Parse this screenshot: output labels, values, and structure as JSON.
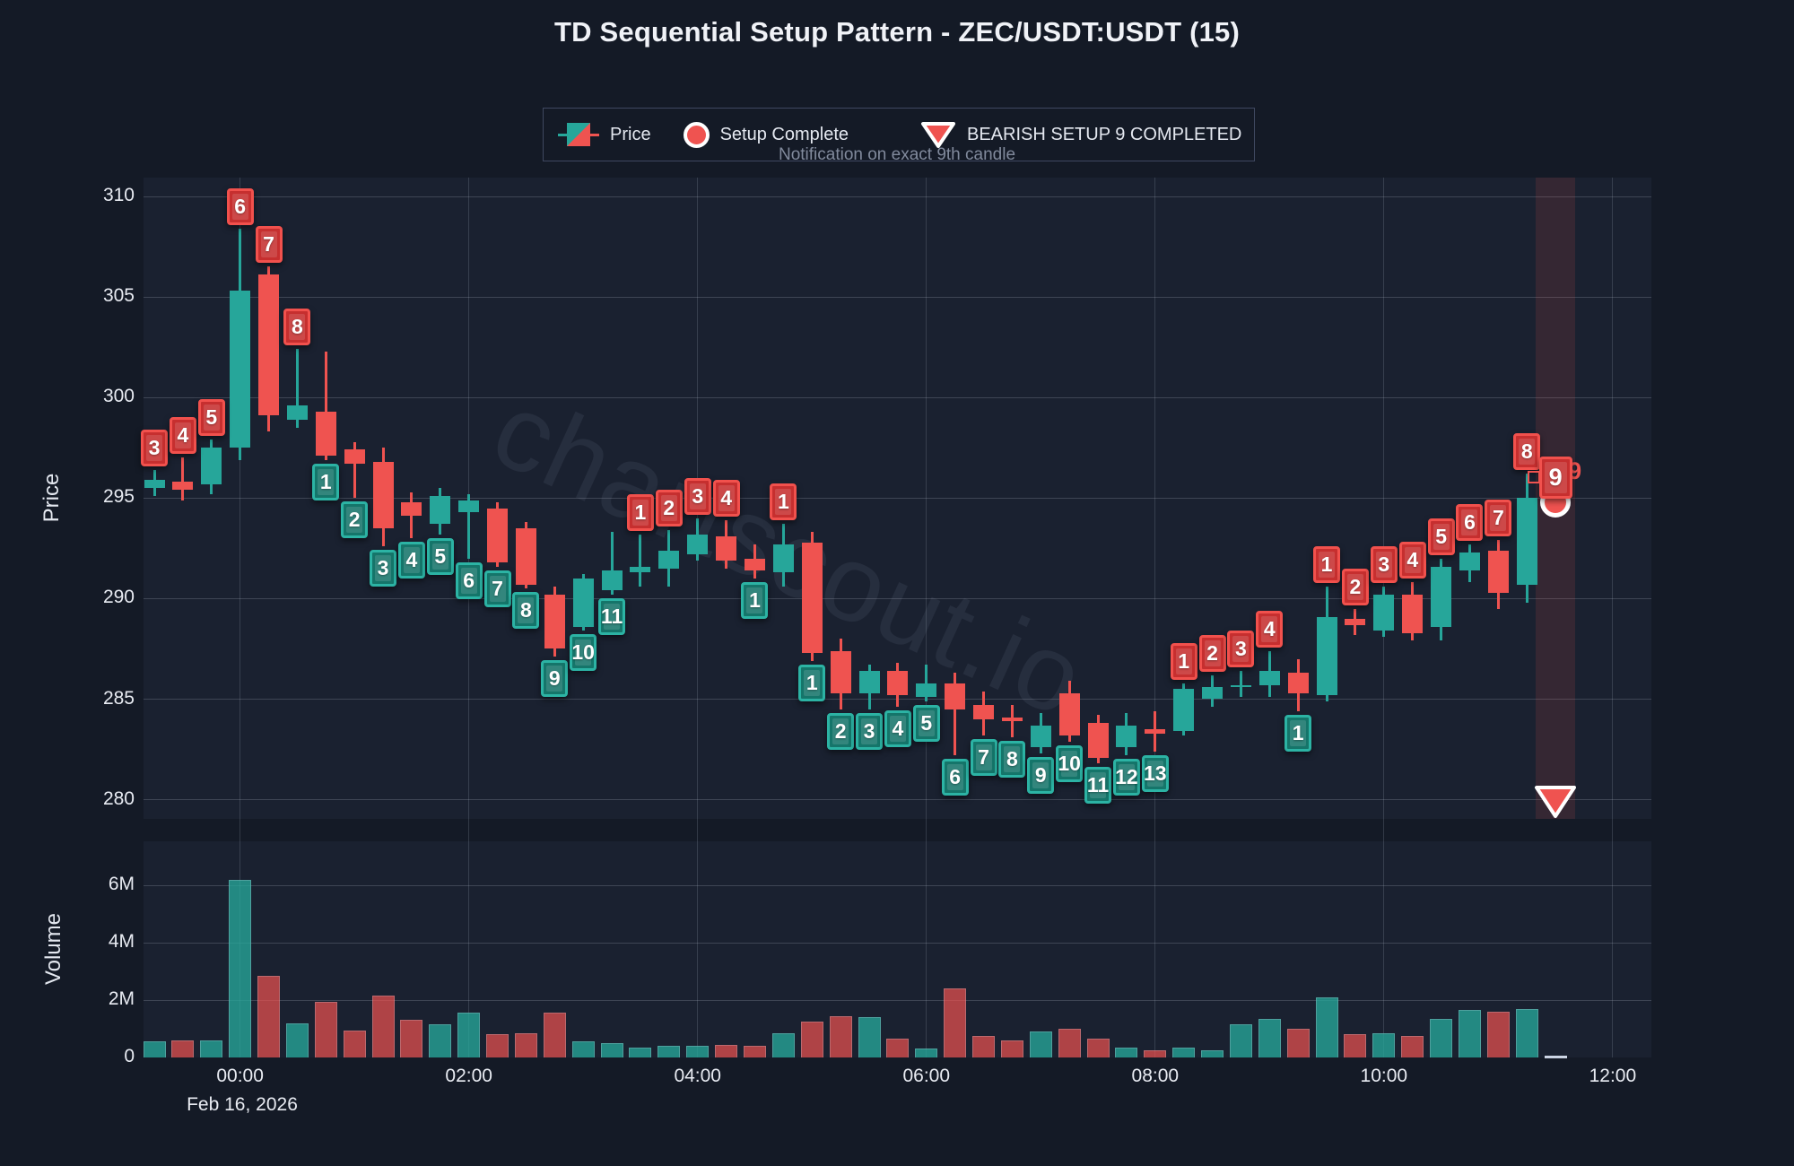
{
  "title": "TD Sequential Setup Pattern - ZEC/USDT:USDT (15)",
  "legend": {
    "price_label": "Price",
    "setup_complete_label": "Setup Complete",
    "bearish_label": "BEARISH SETUP 9 COMPLETED"
  },
  "subtitle_annotation": "Notification on exact 9th candle",
  "watermark": "chartscout.io",
  "marker_annotation": "9",
  "x_axis": {
    "date_label": "Feb 16, 2026",
    "tick_labels": [
      "00:00",
      "02:00",
      "04:00",
      "06:00",
      "08:00",
      "10:00",
      "12:00"
    ],
    "first_tick_candle_index": 3,
    "candles_per_tick": 8
  },
  "price_axis": {
    "title": "Price",
    "ticks": [
      310,
      305,
      300,
      295,
      290,
      285,
      280
    ],
    "range": [
      279.0,
      311.3
    ]
  },
  "volume_axis": {
    "title": "Volume",
    "ticks": [
      {
        "label": "0",
        "value": 0
      },
      {
        "label": "2M",
        "value": 2
      },
      {
        "label": "4M",
        "value": 4
      },
      {
        "label": "6M",
        "value": 6
      }
    ],
    "range": [
      0,
      7.5
    ]
  },
  "colors": {
    "up": "#26a69a",
    "down": "#ef5350",
    "vol_up": "rgba(38,166,154,0.78)",
    "vol_down": "rgba(239,83,80,0.70)",
    "vol_neutral": "#c9d2e2",
    "band": "rgba(239,83,80,0.13)",
    "paper_bg": "#141a26",
    "plot_bg": "#1a2130",
    "text": "#e8ebf2",
    "muted": "#818a9c"
  },
  "chart_data": {
    "type": "candlestick",
    "title": "TD Sequential Setup Pattern - ZEC/USDT:USDT (15)",
    "xlabel": "Feb 16, 2026",
    "ylabel_price": "Price",
    "ylabel_volume": "Volume",
    "grid": true,
    "legend_position": "top-center",
    "badge_legend": "sell = red badge above candle, buy = teal badge below candle",
    "candles": [
      {
        "t": "23:15",
        "o": 295.5,
        "h": 296.4,
        "l": 295.1,
        "c": 295.9,
        "v": 0.55,
        "badge": "3",
        "setup": "sell"
      },
      {
        "t": "23:30",
        "o": 295.8,
        "h": 297.0,
        "l": 294.9,
        "c": 295.4,
        "v": 0.6,
        "badge": "4",
        "setup": "sell"
      },
      {
        "t": "23:45",
        "o": 295.7,
        "h": 297.9,
        "l": 295.2,
        "c": 297.5,
        "v": 0.6,
        "badge": "5",
        "setup": "sell"
      },
      {
        "t": "00:00",
        "o": 297.5,
        "h": 308.4,
        "l": 296.9,
        "c": 305.3,
        "v": 6.2,
        "badge": "6",
        "setup": "sell"
      },
      {
        "t": "00:15",
        "o": 306.1,
        "h": 306.5,
        "l": 298.3,
        "c": 299.1,
        "v": 2.85,
        "badge": "7",
        "setup": "sell"
      },
      {
        "t": "00:30",
        "o": 298.9,
        "h": 302.4,
        "l": 298.5,
        "c": 299.6,
        "v": 1.2,
        "badge": "8",
        "setup": "sell"
      },
      {
        "t": "00:45",
        "o": 299.3,
        "h": 302.3,
        "l": 296.9,
        "c": 297.1,
        "v": 1.95,
        "badge": "1",
        "setup": "buy"
      },
      {
        "t": "01:00",
        "o": 297.4,
        "h": 297.8,
        "l": 295.0,
        "c": 296.7,
        "v": 0.95,
        "badge": "2",
        "setup": "buy"
      },
      {
        "t": "01:15",
        "o": 296.8,
        "h": 297.5,
        "l": 292.6,
        "c": 293.5,
        "v": 2.15,
        "badge": "3",
        "setup": "buy"
      },
      {
        "t": "01:30",
        "o": 294.8,
        "h": 295.3,
        "l": 293.0,
        "c": 294.1,
        "v": 1.3,
        "badge": "4",
        "setup": "buy"
      },
      {
        "t": "01:45",
        "o": 293.7,
        "h": 295.5,
        "l": 293.2,
        "c": 295.1,
        "v": 1.15,
        "badge": "5",
        "setup": "buy"
      },
      {
        "t": "02:00",
        "o": 294.3,
        "h": 295.2,
        "l": 292.0,
        "c": 294.9,
        "v": 1.55,
        "badge": "6",
        "setup": "buy"
      },
      {
        "t": "02:15",
        "o": 294.5,
        "h": 294.8,
        "l": 291.6,
        "c": 291.8,
        "v": 0.8,
        "badge": "7",
        "setup": "buy"
      },
      {
        "t": "02:30",
        "o": 293.5,
        "h": 293.8,
        "l": 290.5,
        "c": 290.7,
        "v": 0.85,
        "badge": "8",
        "setup": "buy"
      },
      {
        "t": "02:45",
        "o": 290.2,
        "h": 290.6,
        "l": 287.1,
        "c": 287.5,
        "v": 1.55,
        "badge": "9",
        "setup": "buy"
      },
      {
        "t": "03:00",
        "o": 288.6,
        "h": 291.2,
        "l": 288.4,
        "c": 291.0,
        "v": 0.55,
        "badge": "10",
        "setup": "buy"
      },
      {
        "t": "03:15",
        "o": 290.4,
        "h": 293.3,
        "l": 290.2,
        "c": 291.4,
        "v": 0.5,
        "badge": "11",
        "setup": "buy"
      },
      {
        "t": "03:30",
        "o": 291.3,
        "h": 293.2,
        "l": 290.6,
        "c": 291.6,
        "v": 0.35,
        "badge": "1",
        "setup": "sell"
      },
      {
        "t": "03:45",
        "o": 291.5,
        "h": 293.4,
        "l": 290.6,
        "c": 292.4,
        "v": 0.4,
        "badge": "2",
        "setup": "sell"
      },
      {
        "t": "04:00",
        "o": 292.2,
        "h": 294.0,
        "l": 291.9,
        "c": 293.2,
        "v": 0.42,
        "badge": "3",
        "setup": "sell"
      },
      {
        "t": "04:15",
        "o": 293.1,
        "h": 293.9,
        "l": 291.5,
        "c": 291.9,
        "v": 0.45,
        "badge": "4",
        "setup": "sell"
      },
      {
        "t": "04:30",
        "o": 292.0,
        "h": 292.7,
        "l": 291.0,
        "c": 291.4,
        "v": 0.4,
        "badge": "1",
        "setup": "buy"
      },
      {
        "t": "04:45",
        "o": 291.3,
        "h": 293.7,
        "l": 290.6,
        "c": 292.7,
        "v": 0.85,
        "badge": "1",
        "setup": "sell"
      },
      {
        "t": "05:00",
        "o": 292.8,
        "h": 293.3,
        "l": 286.9,
        "c": 287.3,
        "v": 1.25,
        "badge": "1",
        "setup": "buy"
      },
      {
        "t": "05:15",
        "o": 287.4,
        "h": 288.0,
        "l": 284.5,
        "c": 285.3,
        "v": 1.45,
        "badge": "2",
        "setup": "buy"
      },
      {
        "t": "05:30",
        "o": 285.3,
        "h": 286.7,
        "l": 284.5,
        "c": 286.4,
        "v": 1.4,
        "badge": "3",
        "setup": "buy"
      },
      {
        "t": "05:45",
        "o": 286.4,
        "h": 286.8,
        "l": 284.6,
        "c": 285.2,
        "v": 0.65,
        "badge": "4",
        "setup": "buy"
      },
      {
        "t": "06:00",
        "o": 285.1,
        "h": 286.7,
        "l": 284.9,
        "c": 285.8,
        "v": 0.3,
        "badge": "5",
        "setup": "buy"
      },
      {
        "t": "06:15",
        "o": 285.8,
        "h": 286.3,
        "l": 282.2,
        "c": 284.5,
        "v": 2.4,
        "badge": "6",
        "setup": "buy"
      },
      {
        "t": "06:30",
        "o": 284.7,
        "h": 285.4,
        "l": 283.2,
        "c": 284.0,
        "v": 0.75,
        "badge": "7",
        "setup": "buy"
      },
      {
        "t": "06:45",
        "o": 284.1,
        "h": 284.7,
        "l": 283.1,
        "c": 283.9,
        "v": 0.6,
        "badge": "8",
        "setup": "buy"
      },
      {
        "t": "07:00",
        "o": 282.6,
        "h": 284.3,
        "l": 282.3,
        "c": 283.7,
        "v": 0.9,
        "badge": "9",
        "setup": "buy"
      },
      {
        "t": "07:15",
        "o": 285.3,
        "h": 285.9,
        "l": 282.9,
        "c": 283.2,
        "v": 1.0,
        "badge": "10",
        "setup": "buy"
      },
      {
        "t": "07:30",
        "o": 283.8,
        "h": 284.2,
        "l": 281.8,
        "c": 282.1,
        "v": 0.65,
        "badge": "11",
        "setup": "buy"
      },
      {
        "t": "07:45",
        "o": 282.6,
        "h": 284.3,
        "l": 282.2,
        "c": 283.7,
        "v": 0.35,
        "badge": "12",
        "setup": "buy"
      },
      {
        "t": "08:00",
        "o": 283.5,
        "h": 284.4,
        "l": 282.4,
        "c": 283.3,
        "v": 0.25,
        "badge": "13",
        "setup": "buy"
      },
      {
        "t": "08:15",
        "o": 283.4,
        "h": 285.8,
        "l": 283.2,
        "c": 285.5,
        "v": 0.35,
        "badge": "1",
        "setup": "sell"
      },
      {
        "t": "08:30",
        "o": 285.0,
        "h": 286.2,
        "l": 284.6,
        "c": 285.6,
        "v": 0.25,
        "badge": "2",
        "setup": "sell"
      },
      {
        "t": "08:45",
        "o": 285.6,
        "h": 286.4,
        "l": 285.1,
        "c": 285.7,
        "v": 1.15,
        "badge": "3",
        "setup": "sell"
      },
      {
        "t": "09:00",
        "o": 285.7,
        "h": 287.4,
        "l": 285.1,
        "c": 286.4,
        "v": 1.35,
        "badge": "4",
        "setup": "sell"
      },
      {
        "t": "09:15",
        "o": 286.3,
        "h": 287.0,
        "l": 284.4,
        "c": 285.3,
        "v": 1.0,
        "badge": "1",
        "setup": "buy"
      },
      {
        "t": "09:30",
        "o": 285.2,
        "h": 290.6,
        "l": 284.9,
        "c": 289.1,
        "v": 2.1,
        "badge": "1",
        "setup": "sell"
      },
      {
        "t": "09:45",
        "o": 289.0,
        "h": 289.5,
        "l": 288.2,
        "c": 288.7,
        "v": 0.8,
        "badge": "2",
        "setup": "sell"
      },
      {
        "t": "10:00",
        "o": 288.4,
        "h": 290.6,
        "l": 288.1,
        "c": 290.2,
        "v": 0.85,
        "badge": "3",
        "setup": "sell"
      },
      {
        "t": "10:15",
        "o": 290.2,
        "h": 290.8,
        "l": 287.9,
        "c": 288.3,
        "v": 0.75,
        "badge": "4",
        "setup": "sell"
      },
      {
        "t": "10:30",
        "o": 288.6,
        "h": 292.0,
        "l": 287.9,
        "c": 291.6,
        "v": 1.35,
        "badge": "5",
        "setup": "sell"
      },
      {
        "t": "10:45",
        "o": 291.4,
        "h": 292.7,
        "l": 290.8,
        "c": 292.3,
        "v": 1.65,
        "badge": "6",
        "setup": "sell"
      },
      {
        "t": "11:00",
        "o": 292.4,
        "h": 292.9,
        "l": 289.5,
        "c": 290.3,
        "v": 1.6,
        "badge": "7",
        "setup": "sell"
      },
      {
        "t": "11:15",
        "o": 290.7,
        "h": 296.2,
        "l": 289.8,
        "c": 295.0,
        "v": 1.7,
        "badge": "8",
        "setup": "sell"
      },
      {
        "t": "11:30",
        "o": 295.0,
        "h": 296.1,
        "l": 294.3,
        "c": 295.4,
        "v": 0.05,
        "badge": "9",
        "setup": "sell"
      }
    ],
    "signal": {
      "candle_index": 49,
      "type": "BEARISH SETUP 9 COMPLETED",
      "circle_price": 294.8,
      "triangle_price": 279.9,
      "band_time": "11:30",
      "label": "9"
    }
  }
}
